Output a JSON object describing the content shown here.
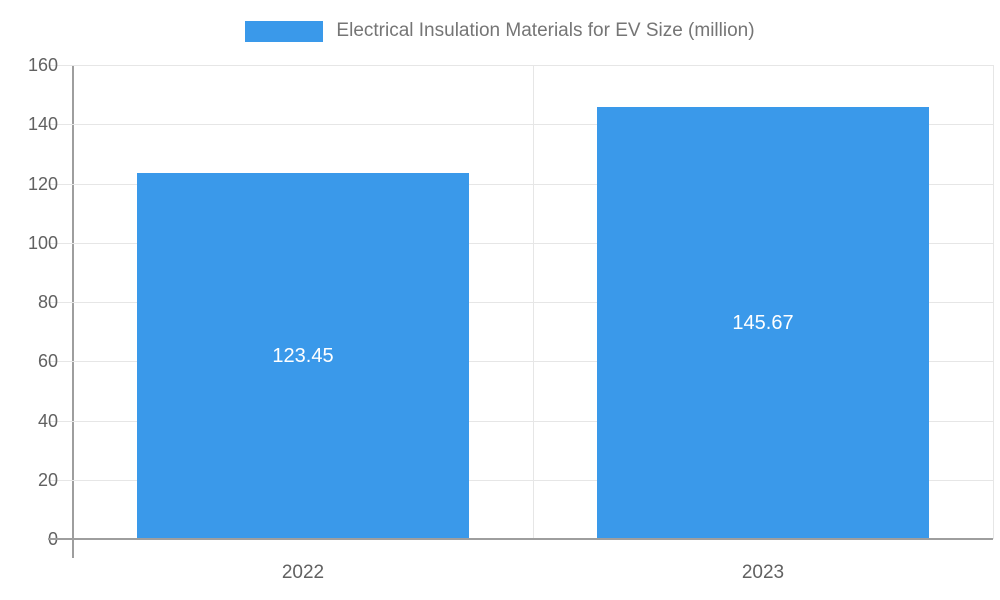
{
  "chart_data": {
    "type": "bar",
    "title": "Electrical Insulation Materials for EV Size (million)",
    "categories": [
      "2022",
      "2023"
    ],
    "values": [
      123.45,
      145.67
    ],
    "data_labels": [
      "123.45",
      "145.67"
    ],
    "xlabel": "",
    "ylabel": "",
    "ylim": [
      0,
      160
    ],
    "yticks": [
      0,
      20,
      40,
      60,
      80,
      100,
      120,
      140,
      160
    ],
    "ytick_labels": [
      "0",
      "20",
      "40",
      "60",
      "80",
      "100",
      "120",
      "140",
      "160"
    ],
    "grid": true,
    "legend_position": "top",
    "bar_color": "#3a99ea",
    "bar_label_color": "#ffffff"
  },
  "colors": {
    "background": "#ffffff",
    "bar": "#3a99ea",
    "gridline": "#e6e6e6",
    "axis_line": "#9e9e9e",
    "tick_label": "#616161",
    "legend_text": "#757575",
    "bar_label": "#ffffff"
  }
}
